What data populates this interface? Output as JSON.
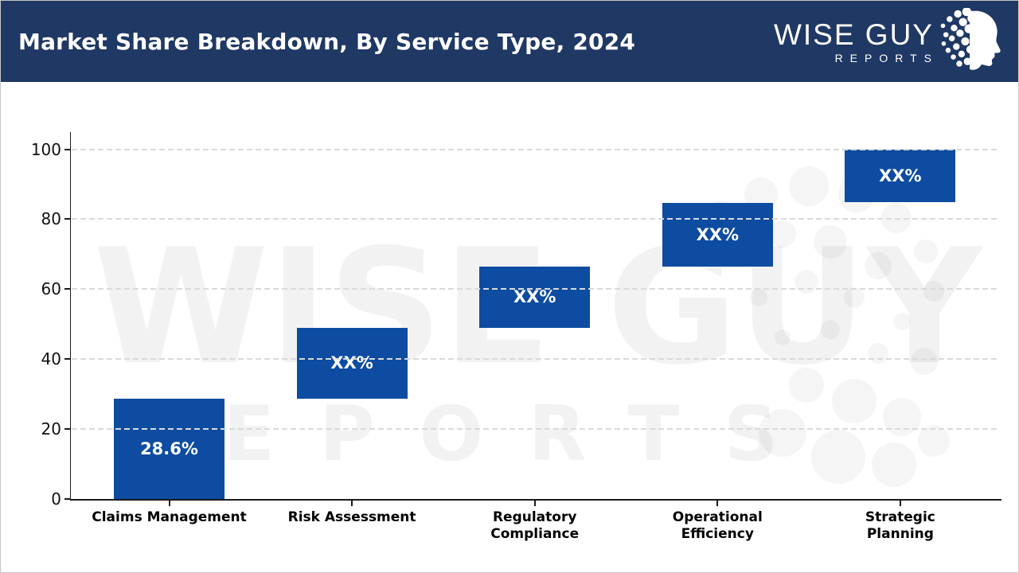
{
  "header": {
    "title": "Market Share Breakdown, By Service Type, 2024",
    "logo": {
      "line1": "WISE GUY",
      "line2": "REPORTS"
    }
  },
  "watermark": {
    "line1": "WISE GUY",
    "line2": "REPORTS"
  },
  "chart_data": {
    "type": "bar",
    "subtype": "waterfall",
    "title": "Market Share Breakdown, By Service Type, 2024",
    "categories": [
      "Claims Management",
      "Risk Assessment",
      "Regulatory\nCompliance",
      "Operational\nEfficiency",
      "Strategic Planning"
    ],
    "bars": [
      {
        "category": "Claims Management",
        "start": 0,
        "end": 28.6,
        "label": "28.6%"
      },
      {
        "category": "Risk Assessment",
        "start": 28.6,
        "end": 49.0,
        "label": "XX%"
      },
      {
        "category": "Regulatory Compliance",
        "start": 49.0,
        "end": 66.5,
        "label": "XX%"
      },
      {
        "category": "Operational Efficiency",
        "start": 66.5,
        "end": 84.7,
        "label": "XX%"
      },
      {
        "category": "Strategic Planning",
        "start": 84.9,
        "end": 100,
        "label": "XX%"
      }
    ],
    "xlabel": "",
    "ylabel": "",
    "ylim": [
      0,
      100
    ],
    "yticks": [
      0,
      20,
      40,
      60,
      80,
      100
    ],
    "grid": "horizontal-dashed",
    "legend": "none"
  },
  "colors": {
    "header_bg": "#1f3864",
    "bar": "#0d4ca0",
    "grid": "#dadada",
    "axis": "#1a1a1a"
  }
}
